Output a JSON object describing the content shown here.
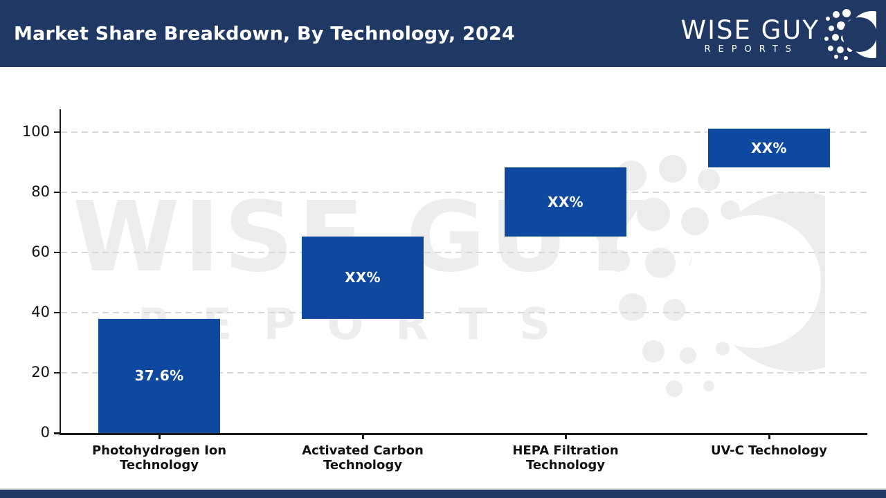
{
  "header": {
    "title": "Market Share Breakdown, By Technology, 2024",
    "bg_color": "#1f3864",
    "logo": {
      "name": "WISE GUY",
      "sub": "REPORTS"
    }
  },
  "watermark": {
    "line1": "WISE GUY",
    "line2": "REPORTS"
  },
  "chart_data": {
    "type": "bar",
    "subtype": "waterfall",
    "title": "Market Share Breakdown, By Technology, 2024",
    "categories": [
      [
        "Photohydrogen Ion",
        "Technology"
      ],
      [
        "Activated Carbon",
        "Technology"
      ],
      [
        "HEPA Filtration",
        "Technology"
      ],
      [
        "UV-C Technology"
      ]
    ],
    "segments": [
      {
        "category": "Photohydrogen Ion Technology",
        "start": 0,
        "end": 37.6,
        "label": "37.6%"
      },
      {
        "category": "Activated Carbon Technology",
        "start": 37.6,
        "end": 64.6,
        "label": "XX%"
      },
      {
        "category": "HEPA Filtration Technology",
        "start": 64.6,
        "end": 87.3,
        "label": "XX%"
      },
      {
        "category": "UV-C Technology",
        "start": 87.3,
        "end": 100,
        "label": "XX%"
      }
    ],
    "yticks": [
      0,
      20,
      40,
      60,
      80,
      100
    ],
    "ylim": [
      0,
      107
    ],
    "xlabel": "",
    "ylabel": "",
    "bar_color": "#0e489f",
    "value_label_color": "#ffffff",
    "grid": {
      "horizontal": true,
      "style": "dashed",
      "color": "#d8d8d8"
    },
    "legend": null
  }
}
